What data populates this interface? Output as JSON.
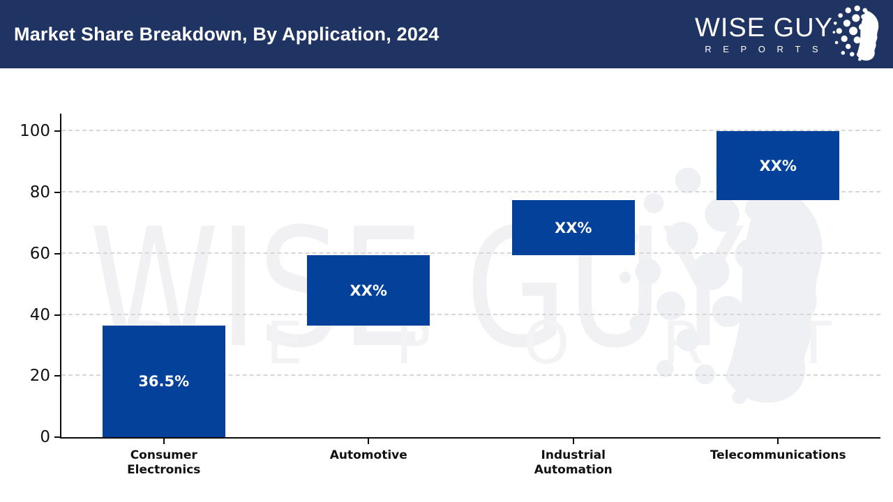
{
  "header": {
    "title": "Market Share Breakdown, By Application, 2024",
    "bg_color": "#203463",
    "logo": {
      "name": "WISE GUY",
      "tagline": "REPORTS"
    }
  },
  "watermark": {
    "line1": "WISE GUY",
    "line2": "REPORTS"
  },
  "chart_data": {
    "type": "bar",
    "subtype": "waterfall",
    "title": "Market Share Breakdown, By Application, 2024",
    "categories": [
      "Consumer Electronics",
      "Automotive",
      "Industrial Automation",
      "Telecommunications"
    ],
    "segments": [
      {
        "category": "Consumer Electronics",
        "start": 0,
        "end": 36.5,
        "label": "36.5%"
      },
      {
        "category": "Automotive",
        "start": 36.5,
        "end": 59.5,
        "label": "XX%"
      },
      {
        "category": "Industrial Automation",
        "start": 59.5,
        "end": 77.5,
        "label": "XX%"
      },
      {
        "category": "Telecommunications",
        "start": 77.5,
        "end": 100,
        "label": "XX%"
      }
    ],
    "xlabel": "",
    "ylabel": "",
    "yticks": [
      0,
      20,
      40,
      60,
      80,
      100
    ],
    "ylim": [
      0,
      105.8
    ],
    "grid": "horizontal-dashed",
    "legend": "none",
    "bar_color": "#04419A",
    "bar_label_color": "#FFFFFF",
    "axis_color": "#0A0A0A",
    "gridline_color": "#D7D7D7"
  }
}
